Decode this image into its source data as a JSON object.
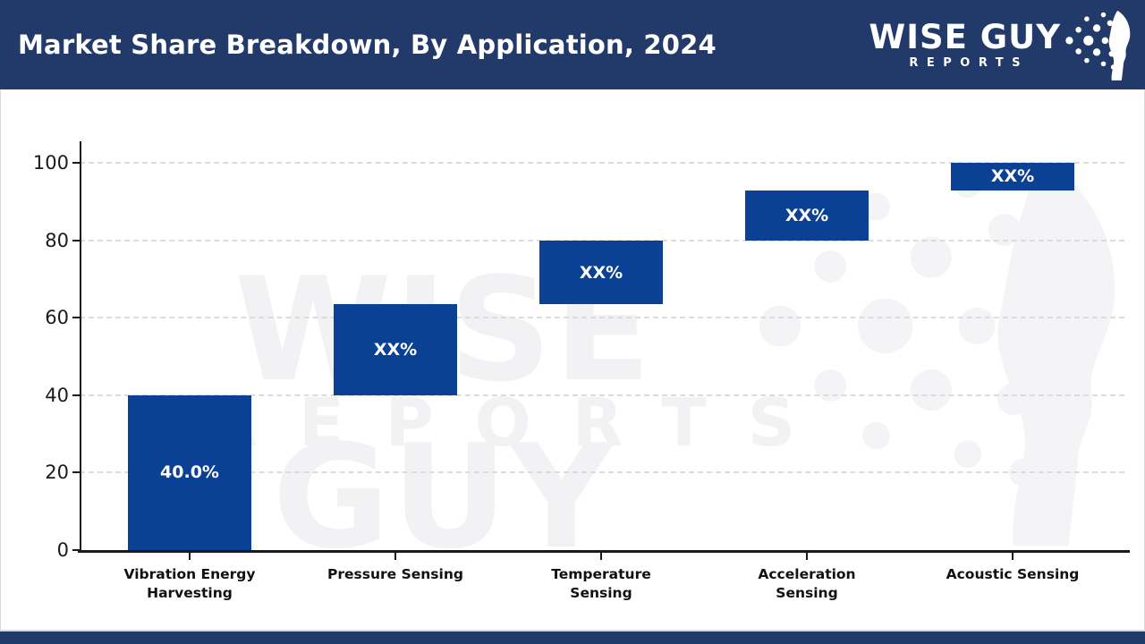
{
  "header": {
    "title": "Market Share Breakdown, By Application, 2024",
    "logo": {
      "primary": "WISE GUY",
      "secondary": "REPORTS"
    }
  },
  "watermark": {
    "primary": "WISE GUY",
    "secondary": "REPORTS"
  },
  "chart_data": {
    "type": "bar",
    "subtype": "waterfall",
    "title": "Market Share Breakdown, By Application, 2024",
    "unit": "%",
    "categories": [
      [
        "Vibration Energy",
        "Harvesting"
      ],
      [
        "Pressure Sensing"
      ],
      [
        "Temperature",
        "Sensing"
      ],
      [
        "Acceleration",
        "Sensing"
      ],
      [
        "Acoustic Sensing"
      ]
    ],
    "segments": [
      {
        "category": "Vibration Energy Harvesting",
        "start": 0,
        "end": 40,
        "label": "40.0%"
      },
      {
        "category": "Pressure Sensing",
        "start": 40,
        "end": 63.4,
        "label": "XX%"
      },
      {
        "category": "Temperature Sensing",
        "start": 63.4,
        "end": 79.8,
        "label": "XX%"
      },
      {
        "category": "Acceleration Sensing",
        "start": 79.8,
        "end": 92.9,
        "label": "XX%"
      },
      {
        "category": "Acoustic Sensing",
        "start": 92.9,
        "end": 100,
        "label": "XX%"
      }
    ],
    "yticks": [
      0,
      20,
      40,
      60,
      80,
      100
    ],
    "ylim": [
      0,
      106
    ],
    "grid": "horizontal-dashed",
    "legend": "none",
    "bar_color": "#0B4194",
    "value_label_color": "#FFFFFF"
  },
  "colors": {
    "header_bg": "#223A69",
    "footer_bg": "#223A69",
    "bar": "#0B4194",
    "axis": "#1A1A1A",
    "gridline": "#DCDCDC",
    "watermark": "#F2F2F4",
    "panel_border": "#D9D9D9"
  }
}
